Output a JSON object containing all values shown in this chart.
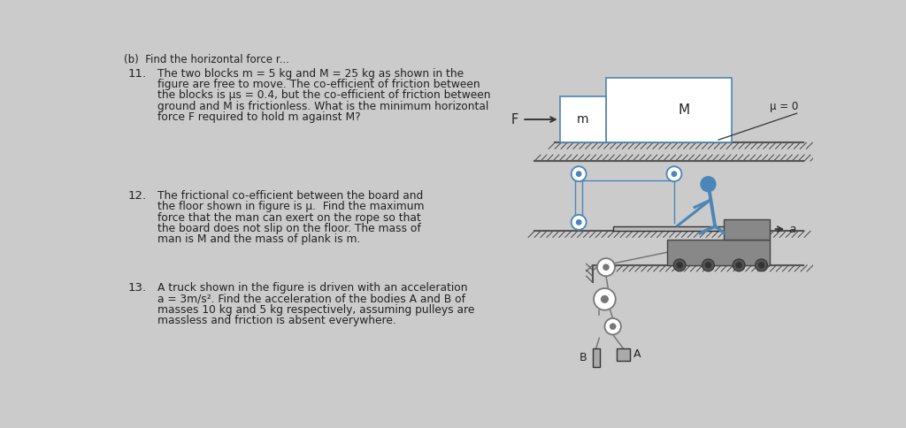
{
  "bg_color": "#cbcbcb",
  "text_color": "#222222",
  "header": "(b)  Find the horizontal force r...",
  "q11_num": "11.",
  "q11_lines": [
    "The two blocks m = 5 kg and M = 25 kg as shown in the",
    "figure are free to move. The co-efficient of friction between",
    "the blocks is μs = 0.4, but the co-efficient of friction between",
    "ground and M is frictionless. What is the minimum horizontal",
    "force F required to hold m against M?"
  ],
  "q12_num": "12.",
  "q12_lines": [
    "The frictional co-efficient between the board and",
    "the floor shown in figure is μ.  Find the maximum",
    "force that the man can exert on the rope so that",
    "the board does not slip on the floor. The mass of",
    "man is M and the mass of plank is m."
  ],
  "q13_num": "13.",
  "q13_lines": [
    "A truck shown in the figure is driven with an acceleration",
    "a = 3m/s². Find the acceleration of the bodies A and B of",
    "masses 10 kg and 5 kg respectively, assuming pulleys are",
    "massless and friction is absent everywhere."
  ],
  "blue": "#4a86b8",
  "dark": "#333333",
  "gray": "#777777",
  "hatch": "#555555",
  "mu_label": "μ = 0"
}
